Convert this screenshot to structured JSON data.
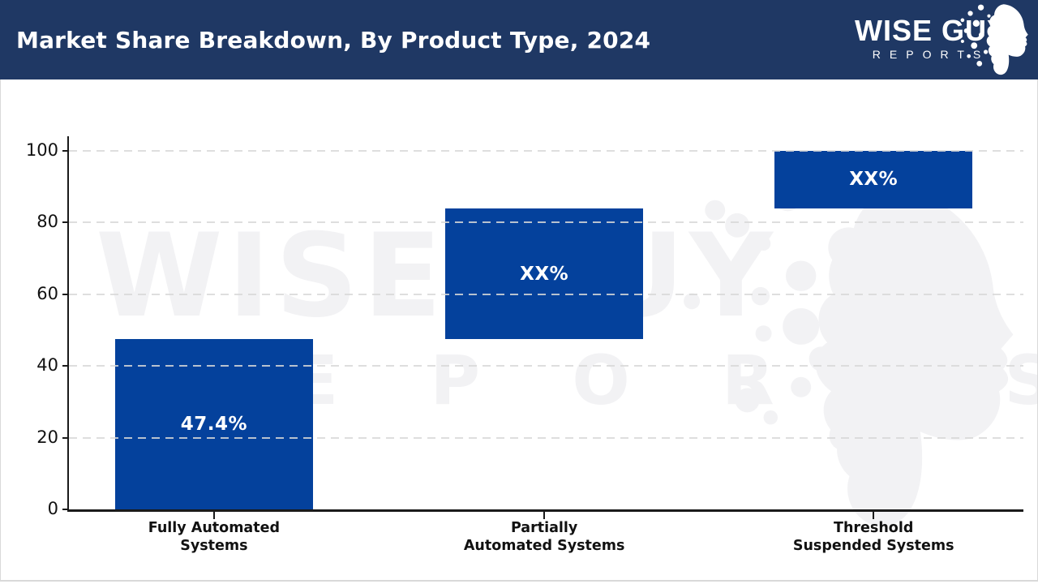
{
  "header": {
    "title": "Market Share Breakdown, By Product Type, 2024",
    "logo": {
      "line1": "WISE GUY",
      "line2": "REPORTS"
    }
  },
  "watermark": {
    "line1": "WISE GUY",
    "line2": "R E P O R T S"
  },
  "chart_data": {
    "type": "bar",
    "variant": "stacked-breakdown-floating-segments",
    "title": "Market Share Breakdown, By Product Type, 2024",
    "categories": [
      "Fully Automated\nSystems",
      "Partially\nAutomated Systems",
      "Threshold\nSuspended Systems"
    ],
    "bars": [
      {
        "category": "Fully Automated Systems",
        "start": 0,
        "end": 47.4,
        "label": "47.4%"
      },
      {
        "category": "Partially Automated Systems",
        "start": 47.4,
        "end": 84,
        "label": "XX%"
      },
      {
        "category": "Threshold Suspended Systems",
        "start": 84,
        "end": 100,
        "label": "XX%"
      }
    ],
    "yticks": [
      0,
      20,
      40,
      60,
      80,
      100
    ],
    "ylim": [
      0,
      104
    ],
    "grid": "dashed-horizontal",
    "legend": "none",
    "bar_color": "#04419c",
    "bar_label_color": "#ffffff"
  },
  "colors": {
    "header_bg": "#1f3864",
    "bar_blue": "#04419c",
    "grid_gray": "#d8d8d8",
    "axis_black": "#1a1a1a",
    "watermark_gray": "#f2f2f4"
  }
}
